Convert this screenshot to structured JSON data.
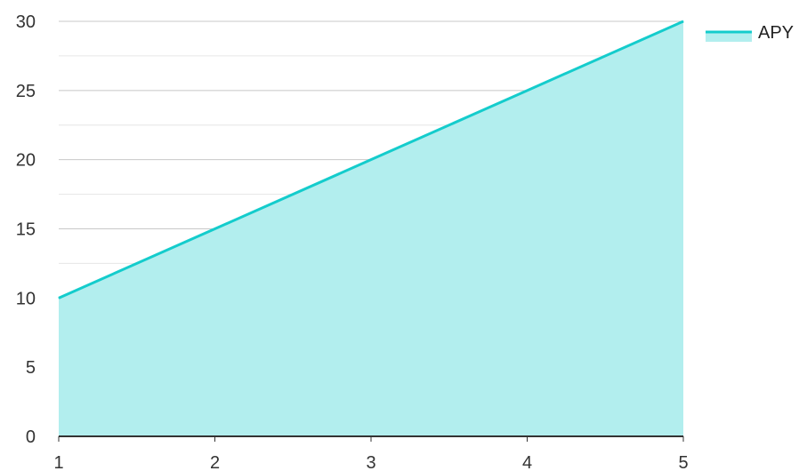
{
  "chart_data": {
    "type": "area",
    "x": [
      1,
      2,
      3,
      4,
      5
    ],
    "series": [
      {
        "name": "APY",
        "values": [
          10,
          15,
          20,
          25,
          30
        ]
      }
    ],
    "xlim": [
      1,
      5
    ],
    "ylim": [
      0,
      30
    ],
    "x_ticks": [
      "1",
      "2",
      "3",
      "4",
      "5"
    ],
    "y_ticks": [
      "0",
      "5",
      "10",
      "15",
      "20",
      "25",
      "30"
    ],
    "grid": true,
    "legend": "top-right",
    "colors": {
      "line": "#14cccc",
      "fill": "#b2eeee",
      "grid_major": "#c8c8c8",
      "grid_minor": "#e6e6e6",
      "axis": "#333333"
    }
  }
}
